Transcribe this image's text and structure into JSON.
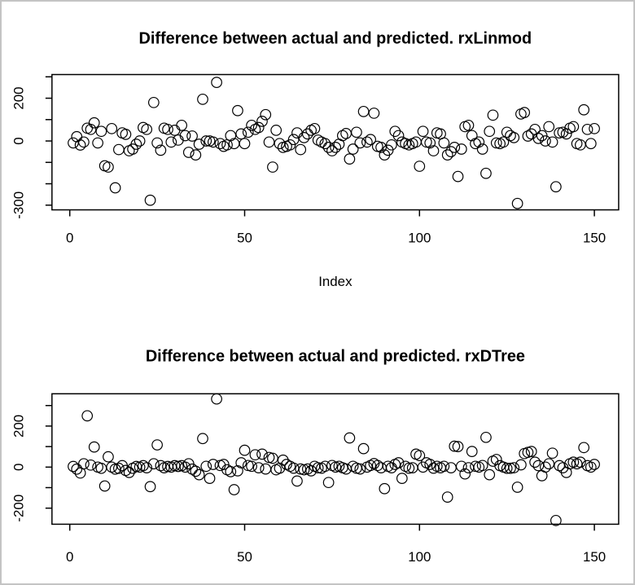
{
  "window": {
    "background_color": "#ffffff",
    "border_color": "#c4c4c4",
    "marker_color": "#000000",
    "axis_color": "#000000"
  },
  "chart_data": [
    {
      "type": "scatter",
      "title": "Difference between actual and predicted. rxLinmod",
      "xlabel": "Index",
      "ylabel": "",
      "marker": "open-circle",
      "x_start_index": 1,
      "xlim": [
        -5,
        156
      ],
      "ylim": [
        -320,
        310
      ],
      "xticks": [
        0,
        50,
        100,
        150
      ],
      "yticks": [
        {
          "v": 300,
          "label": ""
        },
        {
          "v": 200,
          "label": "200"
        },
        {
          "v": 100,
          "label": ""
        },
        {
          "v": 0,
          "label": "0"
        },
        {
          "v": -100,
          "label": ""
        },
        {
          "v": -200,
          "label": ""
        },
        {
          "v": -300,
          "label": "-300"
        }
      ],
      "values": [
        -9,
        20,
        -19,
        -5,
        60,
        54,
        85,
        -9,
        45,
        -116,
        -122,
        58,
        -219,
        -40,
        38,
        31,
        -46,
        -38,
        -15,
        0,
        63,
        54,
        -277,
        180,
        -9,
        -43,
        60,
        54,
        -5,
        50,
        4,
        73,
        25,
        -53,
        23,
        -65,
        -15,
        195,
        0,
        0,
        -5,
        274,
        -12,
        -25,
        -18,
        25,
        -12,
        142,
        33,
        -12,
        41,
        73,
        54,
        63,
        92,
        123,
        -5,
        -122,
        50,
        -12,
        -30,
        -25,
        -18,
        7,
        38,
        -40,
        16,
        33,
        50,
        58,
        4,
        -5,
        -12,
        -30,
        -46,
        -30,
        -15,
        25,
        35,
        -84,
        -38,
        41,
        -9,
        138,
        -5,
        7,
        130,
        -25,
        -30,
        -65,
        -43,
        -18,
        45,
        25,
        -5,
        -12,
        -18,
        -12,
        -5,
        -118,
        45,
        -5,
        -9,
        -46,
        38,
        33,
        -9,
        -65,
        -50,
        -30,
        -166,
        -38,
        67,
        73,
        25,
        -12,
        -5,
        -38,
        -151,
        45,
        121,
        -9,
        -12,
        -5,
        41,
        25,
        16,
        -292,
        126,
        133,
        23,
        33,
        54,
        12,
        25,
        0,
        67,
        -5,
        -214,
        38,
        41,
        33,
        60,
        67,
        -12,
        -18,
        146,
        54,
        -12,
        58
      ]
    },
    {
      "type": "scatter",
      "title": "Difference between actual and predicted. rxDTree",
      "xlabel": "",
      "ylabel": "",
      "marker": "open-circle",
      "x_start_index": 1,
      "xlim": [
        -5,
        156
      ],
      "ylim": [
        -285,
        360
      ],
      "xticks": [
        0,
        50,
        100,
        150
      ],
      "yticks": [
        {
          "v": 300,
          "label": ""
        },
        {
          "v": 200,
          "label": "200"
        },
        {
          "v": 100,
          "label": ""
        },
        {
          "v": 0,
          "label": "0"
        },
        {
          "v": -100,
          "label": ""
        },
        {
          "v": -200,
          "label": "-200"
        }
      ],
      "values": [
        3,
        -10,
        -29,
        16,
        250,
        10,
        98,
        0,
        -6,
        -92,
        50,
        0,
        -10,
        -6,
        7,
        -16,
        -26,
        -6,
        3,
        0,
        7,
        -3,
        -95,
        16,
        108,
        7,
        -3,
        3,
        0,
        7,
        3,
        7,
        0,
        16,
        -10,
        -20,
        -37,
        139,
        4,
        -55,
        13,
        332,
        8,
        13,
        -13,
        -22,
        -110,
        -18,
        21,
        82,
        8,
        4,
        60,
        -3,
        63,
        -9,
        47,
        43,
        -13,
        -5,
        34,
        13,
        4,
        -5,
        -68,
        -9,
        -13,
        -9,
        -18,
        4,
        -3,
        -5,
        4,
        -75,
        8,
        0,
        4,
        -3,
        -9,
        142,
        4,
        -5,
        -9,
        90,
        0,
        8,
        17,
        8,
        -3,
        -105,
        4,
        -3,
        13,
        21,
        -55,
        4,
        -5,
        -3,
        63,
        56,
        0,
        21,
        13,
        -5,
        4,
        -3,
        4,
        -146,
        -3,
        102,
        100,
        4,
        -33,
        -3,
        76,
        4,
        0,
        8,
        145,
        -37,
        29,
        37,
        7,
        0,
        -6,
        -6,
        -3,
        -98,
        11,
        66,
        72,
        76,
        24,
        7,
        -42,
        0,
        16,
        68,
        -260,
        7,
        -3,
        -26,
        16,
        24,
        16,
        24,
        95,
        7,
        0,
        13
      ]
    }
  ]
}
